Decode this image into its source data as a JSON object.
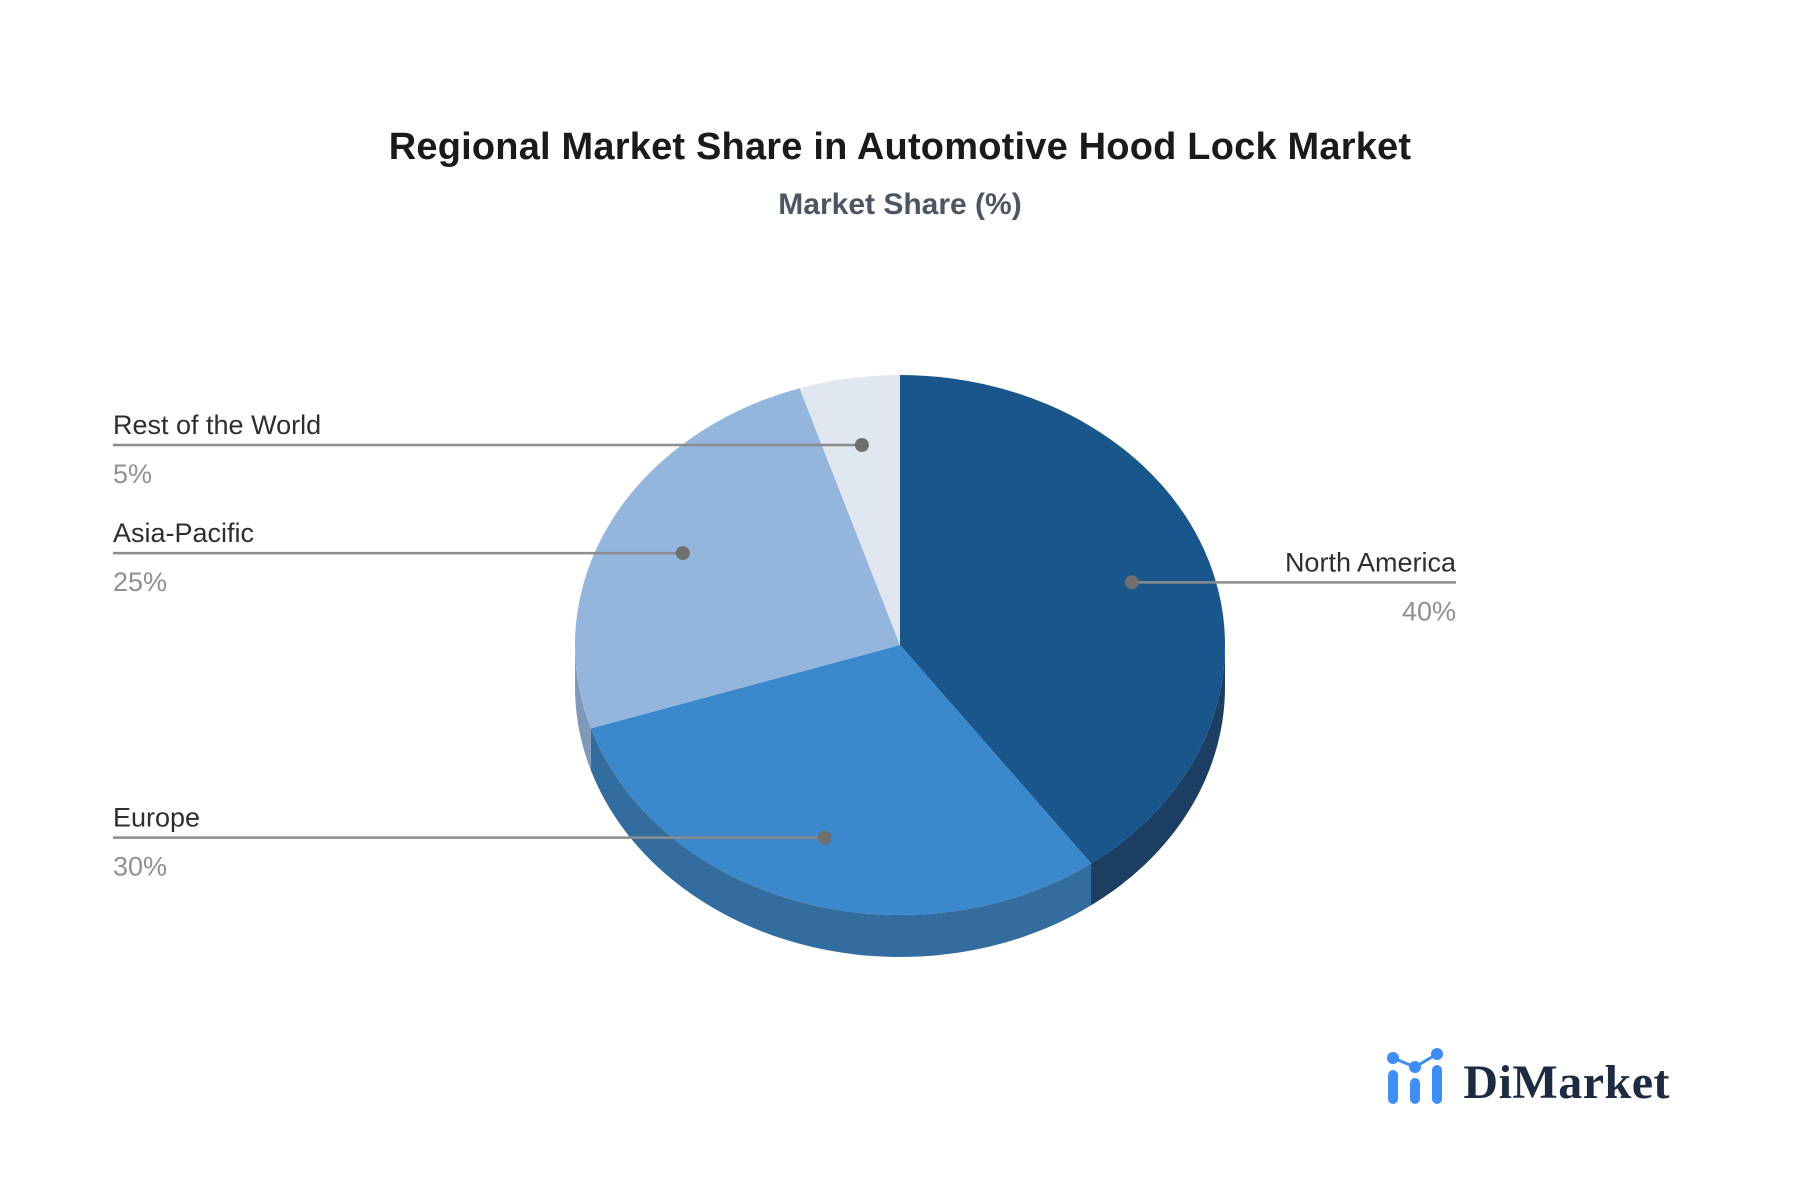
{
  "header": {
    "title": "Regional Market Share in Automotive Hood Lock Market",
    "subtitle": "Market Share (%)"
  },
  "chart_data": {
    "type": "pie",
    "title": "Regional Market Share in Automotive Hood Lock Market",
    "subtitle": "Market Share (%)",
    "unit": "%",
    "style": "3d-pie",
    "start_angle_deg": 0,
    "direction": "clockwise",
    "slices": [
      {
        "name": "North America",
        "value": 40,
        "label": "40%",
        "color": "#19568B",
        "wall_color": "#1B3E62",
        "label_side": "right"
      },
      {
        "name": "Europe",
        "value": 30,
        "label": "30%",
        "color": "#3C88CC",
        "wall_color": "#336D9F",
        "label_side": "left"
      },
      {
        "name": "Asia-Pacific",
        "value": 25,
        "label": "25%",
        "color": "#94B6DC",
        "wall_color": "#8099BA",
        "label_side": "left"
      },
      {
        "name": "Rest of the World",
        "value": 5,
        "label": "5%",
        "color": "#E1E7F0",
        "wall_color": "#C9D3E2",
        "label_side": "left"
      }
    ],
    "legend": "none",
    "label_name_color": "#2E2E2E",
    "label_value_color": "#909090",
    "leader_line_color": "#8C8C8C",
    "leader_dot_color": "#6F6F6F"
  },
  "branding": {
    "logo_text": "DiMarket",
    "logo_icon": "bar-chart-logo-icon",
    "logo_text_color": "#1C2B42",
    "logo_accent_color": "#3F8EF7"
  }
}
